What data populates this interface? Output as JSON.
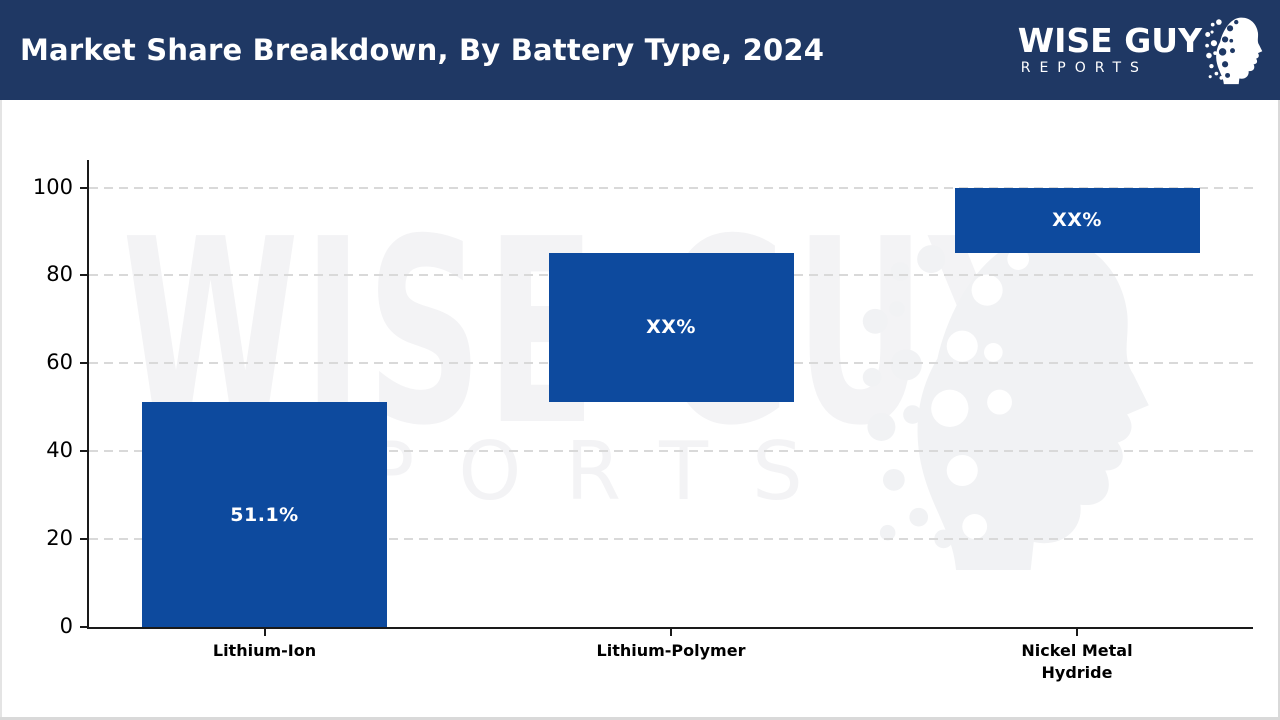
{
  "header": {
    "title": "Market Share Breakdown, By Battery Type, 2024",
    "logo": {
      "wordmark": "WISE GUY",
      "subtext": "REPORTS"
    }
  },
  "watermark": {
    "wordmark": "WISE GUY",
    "subtext": "REPORTS"
  },
  "colors": {
    "header_bg": "#1F3864",
    "bar_blue": "#0D4A9E",
    "bar_label_white": "#FFFFFF",
    "grid_gray": "#D9D9D9",
    "axis_black": "#1A1A1A",
    "watermark_gray": "#F3F3F5"
  },
  "chart_data": {
    "type": "bar",
    "variant": "waterfall",
    "title": "Market Share Breakdown, By Battery Type, 2024",
    "categories": [
      "Lithium-Ion",
      "Lithium-Polymer",
      "Nickel Metal\nHydride"
    ],
    "segments": [
      {
        "start": 0,
        "end": 51.1,
        "label": "51.1%"
      },
      {
        "start": 51.1,
        "end": 85.2,
        "label": "XX%"
      },
      {
        "start": 85.2,
        "end": 100,
        "label": "XX%"
      }
    ],
    "y_ticks": [
      "0",
      "20",
      "40",
      "60",
      "80",
      "100"
    ],
    "ylim": [
      0,
      106
    ],
    "xlabel": "",
    "ylabel": "",
    "grid": "horizontal-dashed",
    "legend": "none",
    "bar_color": "#0D4A9E",
    "bar_label_color": "#FFFFFF"
  }
}
